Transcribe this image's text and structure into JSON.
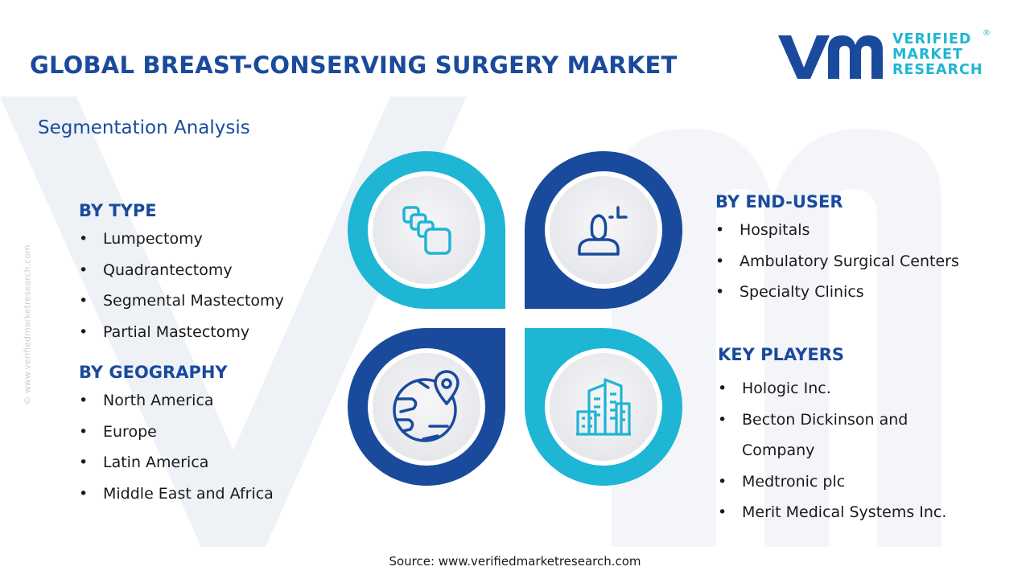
{
  "title": "GLOBAL BREAST-CONSERVING SURGERY MARKET",
  "subtitle": "Segmentation Analysis",
  "side_text": "© www.verifiedmarketresearch.com",
  "logo": {
    "line1": "VERIFIED",
    "line2": "MARKET",
    "line3": "RESEARCH",
    "registered": "®"
  },
  "segments": {
    "by_type": {
      "heading": "BY TYPE",
      "items": [
        "Lumpectomy",
        "Quadrantectomy",
        "Segmental Mastectomy",
        "Partial Mastectomy"
      ]
    },
    "by_geography": {
      "heading": "BY GEOGRAPHY",
      "items": [
        "North America",
        "Europe",
        "Latin America",
        "Middle East and Africa"
      ]
    },
    "by_end_user": {
      "heading": "BY END-USER",
      "items": [
        "Hospitals",
        "Ambulatory Surgical Centers",
        "Specialty Clinics"
      ]
    },
    "key_players": {
      "heading": "KEY PLAYERS",
      "items": [
        "Hologic Inc.",
        "Becton Dickinson and Company",
        "Medtronic plc",
        "Merit Medical Systems Inc."
      ]
    }
  },
  "diagram": {
    "quadrants": [
      {
        "name": "type",
        "icon": "stacked-layers-icon",
        "color": "#1fb5d4"
      },
      {
        "name": "end-user",
        "icon": "user-icon",
        "color": "#1a4a9c"
      },
      {
        "name": "geography",
        "icon": "globe-pin-icon",
        "color": "#1a4a9c"
      },
      {
        "name": "key-players",
        "icon": "buildings-icon",
        "color": "#1fb5d4"
      }
    ]
  },
  "colors": {
    "primary": "#1a4a9c",
    "accent": "#1fb5d4",
    "watermark": "#eef1f6"
  },
  "source": "Source: www.verifiedmarketresearch.com"
}
